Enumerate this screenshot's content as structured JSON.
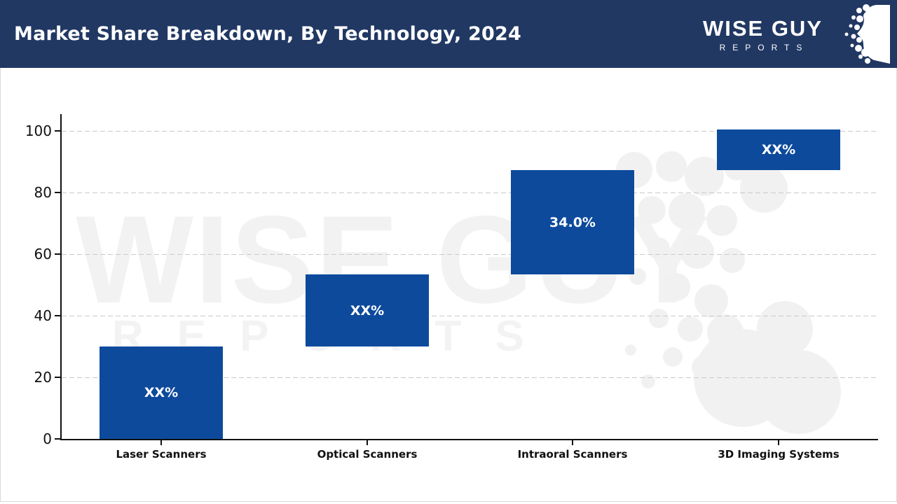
{
  "header": {
    "title": "Market Share Breakdown, By Technology, 2024",
    "bg_color": "#213863",
    "logo": {
      "line1": "WISE GUY",
      "line2": "REPORTS"
    }
  },
  "watermark": {
    "line1": "WISE GUY",
    "line2": "REPORTS"
  },
  "chart_data": {
    "type": "bar",
    "subtype": "waterfall-floating-bars",
    "title": "Market Share Breakdown, By Technology, 2024",
    "xlabel": "",
    "ylabel": "",
    "categories": [
      "Laser Scanners",
      "Optical Scanners",
      "Intraoral Scanners",
      "3D Imaging Systems"
    ],
    "series": [
      {
        "name": "Market Share (%)",
        "segments": [
          {
            "category": "Laser Scanners",
            "start": 0,
            "end": 30,
            "label": "XX%"
          },
          {
            "category": "Optical Scanners",
            "start": 30,
            "end": 53.3,
            "label": "XX%"
          },
          {
            "category": "Intraoral Scanners",
            "start": 53.3,
            "end": 87.3,
            "label": "34.0%"
          },
          {
            "category": "3D Imaging Systems",
            "start": 87.3,
            "end": 100.4,
            "label": "XX%"
          }
        ]
      }
    ],
    "yticks": [
      0,
      20,
      40,
      60,
      80,
      100
    ],
    "ylim": [
      0,
      105.5
    ],
    "grid": "horizontal-dashed",
    "bar_color": "#0d4a9c",
    "label_color": "#ffffff",
    "legend": "none"
  }
}
